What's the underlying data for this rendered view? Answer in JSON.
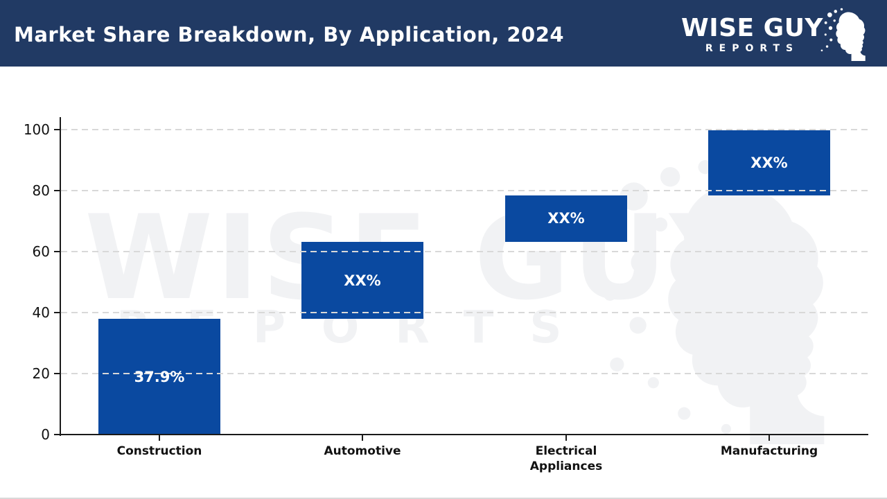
{
  "header": {
    "title": "Market Share Breakdown, By Application, 2024",
    "bg_color": "#213a64",
    "logo": {
      "wordmark": "WISE GUY",
      "subtext": "REPORTS"
    }
  },
  "watermark": {
    "line1": "WISE GUY",
    "line2": "REPORTS"
  },
  "chart_data": {
    "type": "bar",
    "subtype": "waterfall",
    "title": "Market Share Breakdown, By Application, 2024",
    "xlabel": "",
    "ylabel": "",
    "ylim": [
      0,
      100
    ],
    "yticks": [
      0,
      20,
      40,
      60,
      80,
      100
    ],
    "grid": "horizontal-dashed",
    "bar_color": "#0a49a0",
    "bar_label_color": "#ffffff",
    "categories": [
      "Construction",
      "Automotive",
      "Electrical Appliances",
      "Manufacturing"
    ],
    "segments": [
      {
        "category": "Construction",
        "display_lines": [
          "Construction"
        ],
        "start": 0,
        "end": 37.9,
        "label": "37.9%"
      },
      {
        "category": "Automotive",
        "display_lines": [
          "Automotive"
        ],
        "start": 37.9,
        "end": 63.2,
        "label": "XX%"
      },
      {
        "category": "Electrical Appliances",
        "display_lines": [
          "Electrical",
          "Appliances"
        ],
        "start": 63.2,
        "end": 78.4,
        "label": "XX%"
      },
      {
        "category": "Manufacturing",
        "display_lines": [
          "Manufacturing"
        ],
        "start": 78.4,
        "end": 99.8,
        "label": "XX%"
      }
    ]
  }
}
